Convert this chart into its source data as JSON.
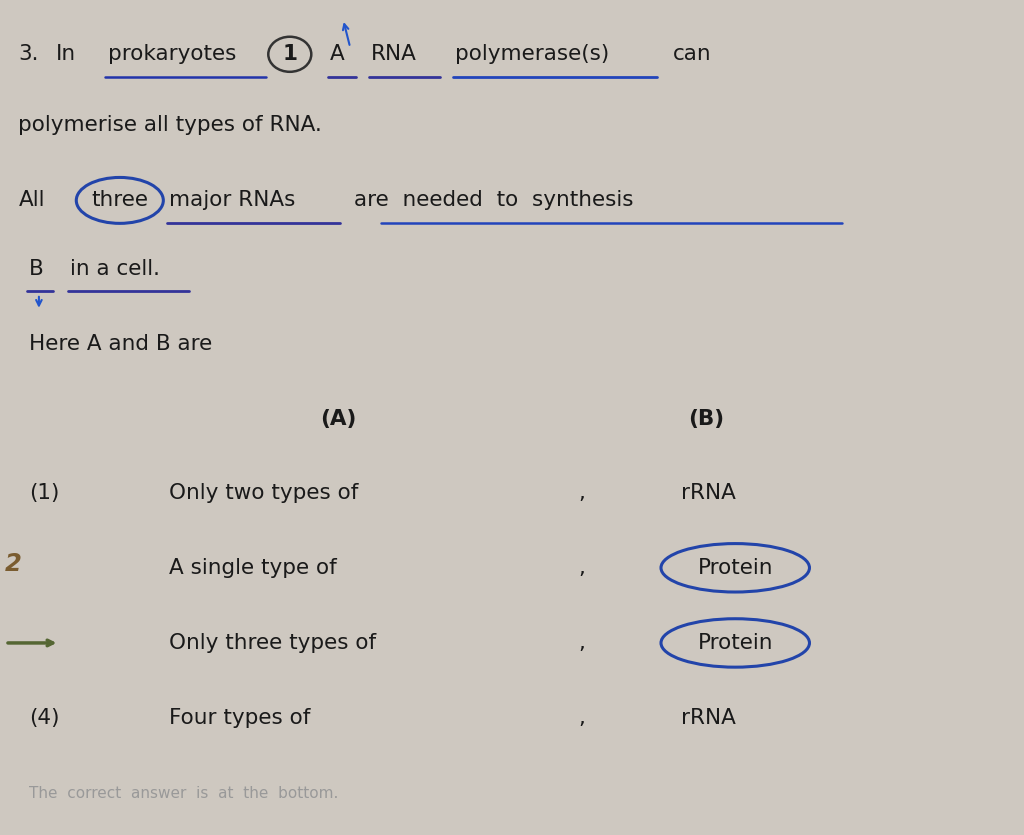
{
  "bg_color": "#cec8c0",
  "text_color": "#1a1a1a",
  "col_A": "(A)",
  "col_B": "(B)",
  "row1_num": "(1)",
  "row1_A": "Only two types of",
  "row1_sep": ",",
  "row1_B": "rRNA",
  "row2_A": "A single type of",
  "row2_sep": ",",
  "row2_B": "Protein",
  "row3_A": "Only three types of",
  "row3_sep": ",",
  "row3_B": "Protein",
  "row4_num": "(4)",
  "row4_A": "Four types of",
  "row4_sep": ",",
  "row4_B": "rRNA"
}
